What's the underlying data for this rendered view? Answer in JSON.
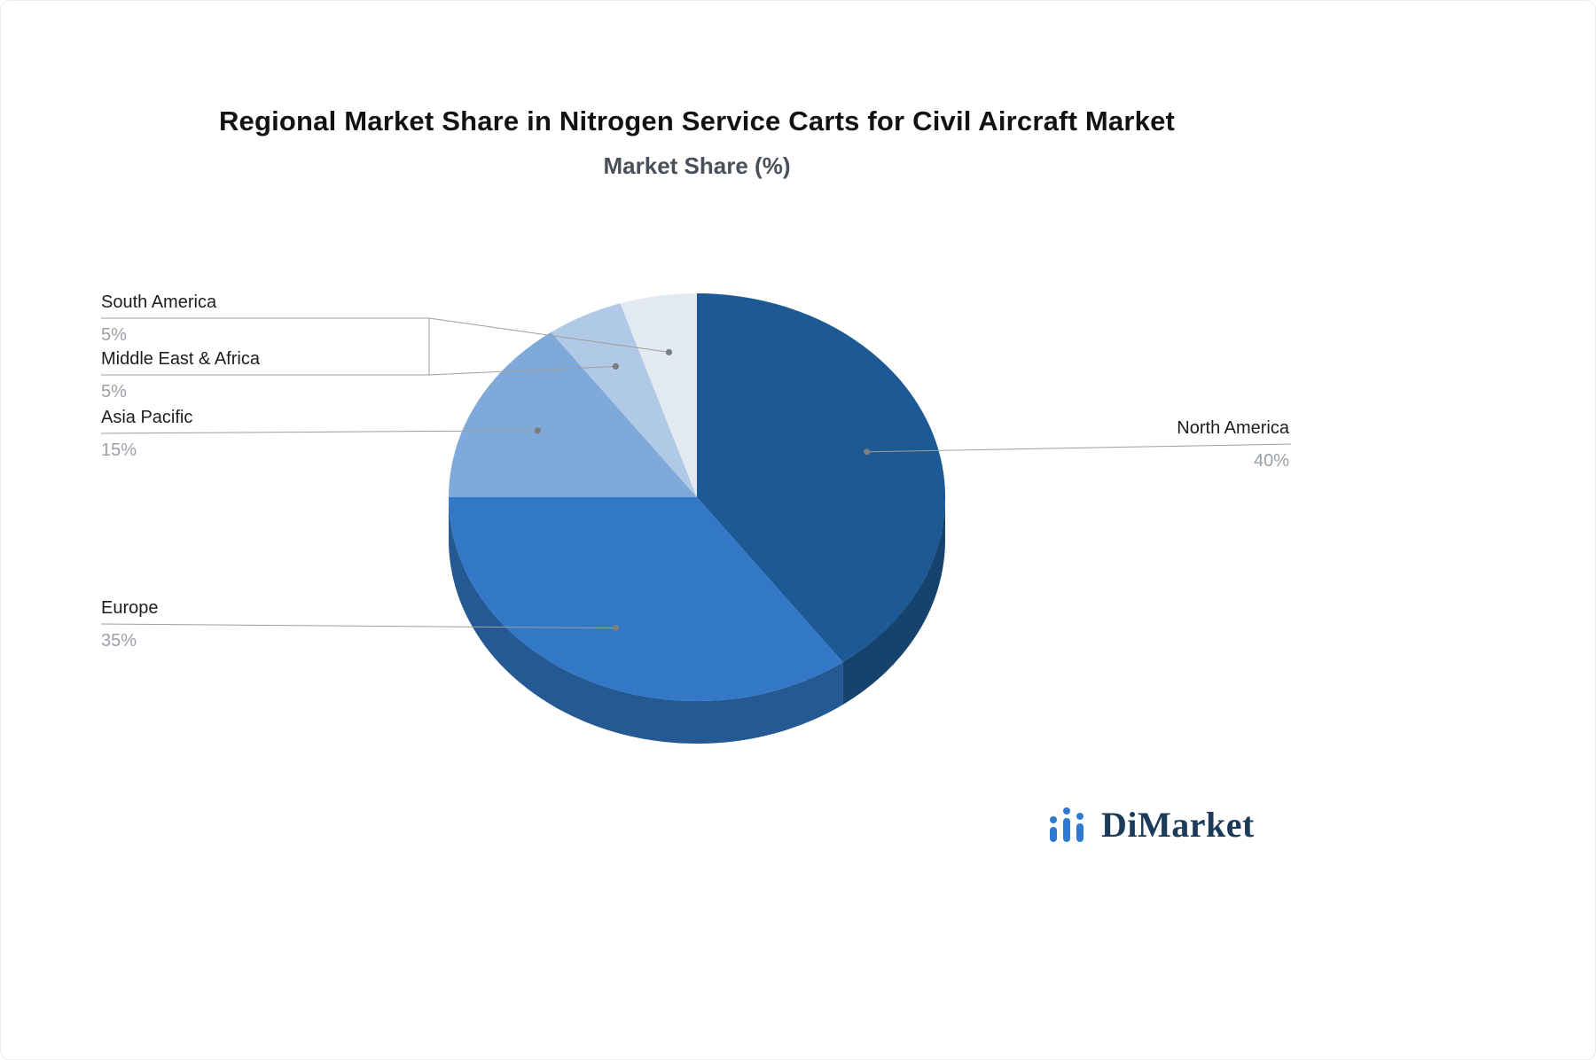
{
  "chart": {
    "title": "Regional Market Share in Nitrogen Service Carts for Civil Aircraft Market",
    "subtitle": "Market Share (%)"
  },
  "chart_data": {
    "type": "pie",
    "title": "Regional Market Share in Nitrogen Service Carts for Civil Aircraft Market",
    "subtitle": "Market Share (%)",
    "unit": "percent",
    "categories": [
      "North America",
      "Europe",
      "Asia Pacific",
      "Middle East & Africa",
      "South America"
    ],
    "values": [
      40,
      35,
      15,
      5,
      5
    ],
    "colors": [
      "#1d5a95",
      "#3278c6",
      "#7fa9d9",
      "#b0c9e6",
      "#e3e9f1"
    ],
    "start_angle_deg": -90,
    "direction": "clockwise",
    "effect": "3d",
    "legend": "none",
    "labels": [
      {
        "name": "North America",
        "value_text": "40%"
      },
      {
        "name": "Europe",
        "value_text": "35%"
      },
      {
        "name": "Asia Pacific",
        "value_text": "15%"
      },
      {
        "name": "Middle East & Africa",
        "value_text": "5%"
      },
      {
        "name": "South America",
        "value_text": "5%"
      }
    ]
  },
  "branding": {
    "logo_text": "DiMarket",
    "logo_icon": "bar-chart-icon",
    "logo_text_color": "#1c3a5a",
    "logo_icon_color": "#2d7ad0"
  }
}
